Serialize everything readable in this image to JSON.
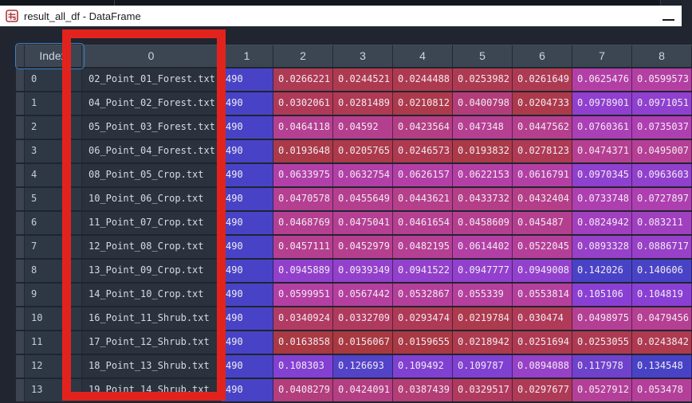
{
  "window": {
    "title": "result_all_df - DataFrame",
    "icon": "dataframe-icon",
    "controls": {
      "minimize_icon": "minimize-icon"
    }
  },
  "table": {
    "index_header": "Index",
    "column_headers": [
      "0",
      "1",
      "2",
      "3",
      "4",
      "5",
      "6",
      "7",
      "8"
    ],
    "rows": [
      {
        "index": "0",
        "file": "02_Point_01_Forest.txt",
        "values": [
          "490",
          "0.0266221",
          "0.0244521",
          "0.0244488",
          "0.0253982",
          "0.0261649",
          "0.0625476",
          "0.0599573"
        ]
      },
      {
        "index": "1",
        "file": "04_Point_02_Forest.txt",
        "values": [
          "490",
          "0.0302061",
          "0.0281489",
          "0.0210812",
          "0.0400798",
          "0.0204733",
          "0.0978901",
          "0.0971051"
        ]
      },
      {
        "index": "2",
        "file": "05_Point_03_Forest.txt",
        "values": [
          "490",
          "0.0464118",
          "0.04592",
          "0.0423564",
          "0.047348",
          "0.0447562",
          "0.0760361",
          "0.0735037"
        ]
      },
      {
        "index": "3",
        "file": "06_Point_04_Forest.txt",
        "values": [
          "490",
          "0.0193648",
          "0.0205765",
          "0.0246573",
          "0.0193832",
          "0.0278123",
          "0.0474371",
          "0.0495007"
        ]
      },
      {
        "index": "4",
        "file": "08_Point_05_Crop.txt",
        "values": [
          "490",
          "0.0633975",
          "0.0632754",
          "0.0626157",
          "0.0622153",
          "0.0616791",
          "0.0970345",
          "0.0963603"
        ]
      },
      {
        "index": "5",
        "file": "10_Point_06_Crop.txt",
        "values": [
          "490",
          "0.0470578",
          "0.0455649",
          "0.0443621",
          "0.0433732",
          "0.0432404",
          "0.0733748",
          "0.0727897"
        ]
      },
      {
        "index": "6",
        "file": "11_Point_07_Crop.txt",
        "values": [
          "490",
          "0.0468769",
          "0.0475041",
          "0.0461654",
          "0.0458609",
          "0.045487",
          "0.0824942",
          "0.083211"
        ]
      },
      {
        "index": "7",
        "file": "12_Point_08_Crop.txt",
        "values": [
          "490",
          "0.0457111",
          "0.0452979",
          "0.0482195",
          "0.0614402",
          "0.0522045",
          "0.0893328",
          "0.0886717"
        ]
      },
      {
        "index": "8",
        "file": "13_Point_09_Crop.txt",
        "values": [
          "490",
          "0.0945889",
          "0.0939349",
          "0.0941522",
          "0.0947777",
          "0.0949008",
          "0.142026",
          "0.140606"
        ]
      },
      {
        "index": "9",
        "file": "14_Point_10_Crop.txt",
        "values": [
          "490",
          "0.0599951",
          "0.0567442",
          "0.0532867",
          "0.055339",
          "0.0553814",
          "0.105106",
          "0.104819"
        ]
      },
      {
        "index": "10",
        "file": "16_Point_11_Shrub.txt",
        "values": [
          "490",
          "0.0340924",
          "0.0332709",
          "0.0293474",
          "0.0219784",
          "0.030474",
          "0.0498975",
          "0.0479456"
        ]
      },
      {
        "index": "11",
        "file": "17_Point_12_Shrub.txt",
        "values": [
          "490",
          "0.0163858",
          "0.0156067",
          "0.0159655",
          "0.0218942",
          "0.0251694",
          "0.0253055",
          "0.0243842"
        ]
      },
      {
        "index": "12",
        "file": "18_Point_13_Shrub.txt",
        "values": [
          "490",
          "0.108303",
          "0.126693",
          "0.109492",
          "0.109787",
          "0.0894088",
          "0.117978",
          "0.134548"
        ]
      },
      {
        "index": "13",
        "file": "19_Point_14_Shrub.txt",
        "values": [
          "490",
          "0.0408279",
          "0.0424091",
          "0.0387439",
          "0.0329517",
          "0.0297677",
          "0.0527912",
          "0.053478"
        ]
      }
    ]
  },
  "colors": {
    "annotation_red": "#e2231d",
    "focus_blue": "#4080c3",
    "heatmap_low_red": "#a8393e",
    "heatmap_mid_magenta": "#b43f8e",
    "heatmap_high_blue": "#3c3cb3"
  }
}
